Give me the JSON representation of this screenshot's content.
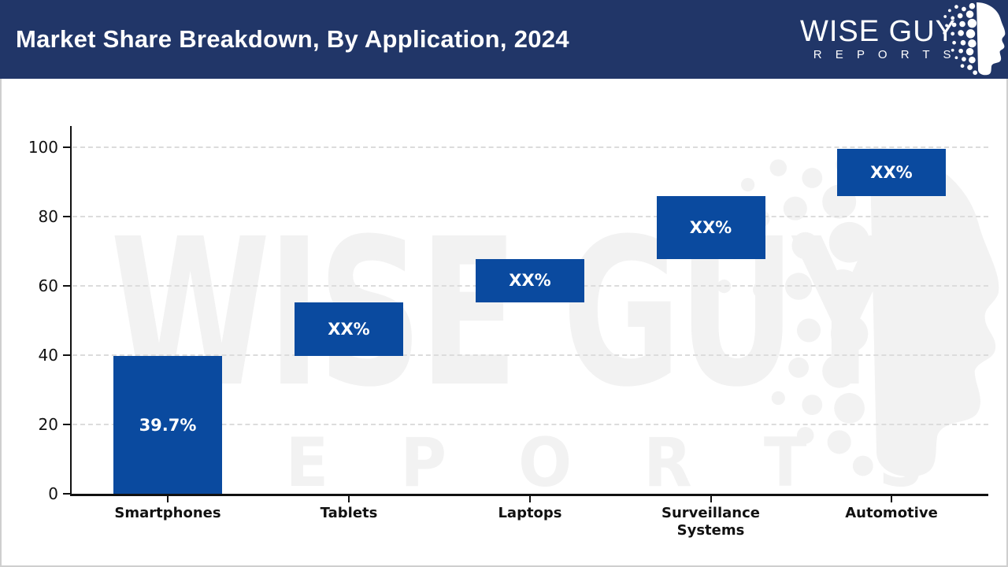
{
  "header": {
    "title": "Market Share Breakdown, By Application, 2024",
    "logo": {
      "brand_line1": "WISE GUY",
      "brand_line2": "R E P O R T S"
    }
  },
  "watermark": {
    "line1": "WISE GUY",
    "line2": "R E P O R T S"
  },
  "chart_data": {
    "type": "bar",
    "variant": "floating-waterfall",
    "title": "Market Share Breakdown, By Application, 2024",
    "categories": [
      "Smartphones",
      "Tablets",
      "Laptops",
      "Surveillance\nSystems",
      "Automotive"
    ],
    "segments": [
      {
        "category": "Smartphones",
        "start": 0,
        "end": 39.7,
        "label": "39.7%"
      },
      {
        "category": "Tablets",
        "start": 39.7,
        "end": 55.2,
        "label": "XX%"
      },
      {
        "category": "Laptops",
        "start": 55.2,
        "end": 67.8,
        "label": "XX%"
      },
      {
        "category": "Surveillance Systems",
        "start": 67.8,
        "end": 85.9,
        "label": "XX%"
      },
      {
        "category": "Automotive",
        "start": 85.9,
        "end": 99.6,
        "label": "XX%"
      }
    ],
    "xlabel": "",
    "ylabel": "",
    "ylim": [
      0,
      105
    ],
    "yticks": [
      0,
      20,
      40,
      60,
      80,
      100
    ],
    "grid": "horizontal-dashed",
    "legend": "none",
    "colors": {
      "bar": "#0a4a9f",
      "bar_label": "#ffffff",
      "grid": "#dcdcdc",
      "axis": "#111111",
      "header_bg": "#213668",
      "watermark": "#f2f2f2"
    }
  }
}
